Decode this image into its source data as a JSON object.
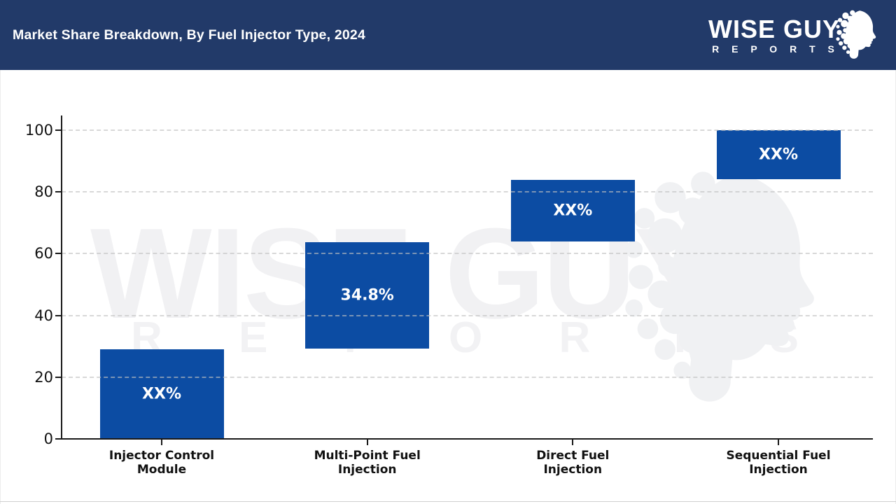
{
  "header": {
    "title": "Market Share Breakdown, By Fuel Injector Type, 2024",
    "logo": {
      "name": "WISE GUY",
      "sub": "R E P O R T S"
    }
  },
  "watermark": {
    "name": "WISE GUY",
    "sub": "R E P O R T S"
  },
  "chart_data": {
    "type": "bar",
    "subtype": "floating-waterfall",
    "title": "Market Share Breakdown, By Fuel Injector Type, 2024",
    "categories": [
      [
        "Injector Control",
        "Module"
      ],
      [
        "Multi-Point Fuel",
        "Injection"
      ],
      [
        "Direct Fuel",
        "Injection"
      ],
      [
        "Sequential Fuel",
        "Injection"
      ]
    ],
    "bars": [
      {
        "start": 0,
        "end": 29,
        "label": "XX%"
      },
      {
        "start": 29,
        "end": 63.8,
        "label": "34.8%"
      },
      {
        "start": 63.8,
        "end": 84,
        "label": "XX%"
      },
      {
        "start": 84,
        "end": 100,
        "label": "XX%"
      }
    ],
    "ylim": [
      0,
      100
    ],
    "yticks": [
      0,
      20,
      40,
      60,
      80,
      100
    ],
    "grid": "horizontal-dashed",
    "legend": "none",
    "colors": {
      "bar": "#0C4CA3",
      "bar_label": "#ffffff",
      "header_bg": "#223A69",
      "axis": "#1a1a1a",
      "grid": "#d9d9d9",
      "watermark": "#f1f1f3"
    }
  }
}
